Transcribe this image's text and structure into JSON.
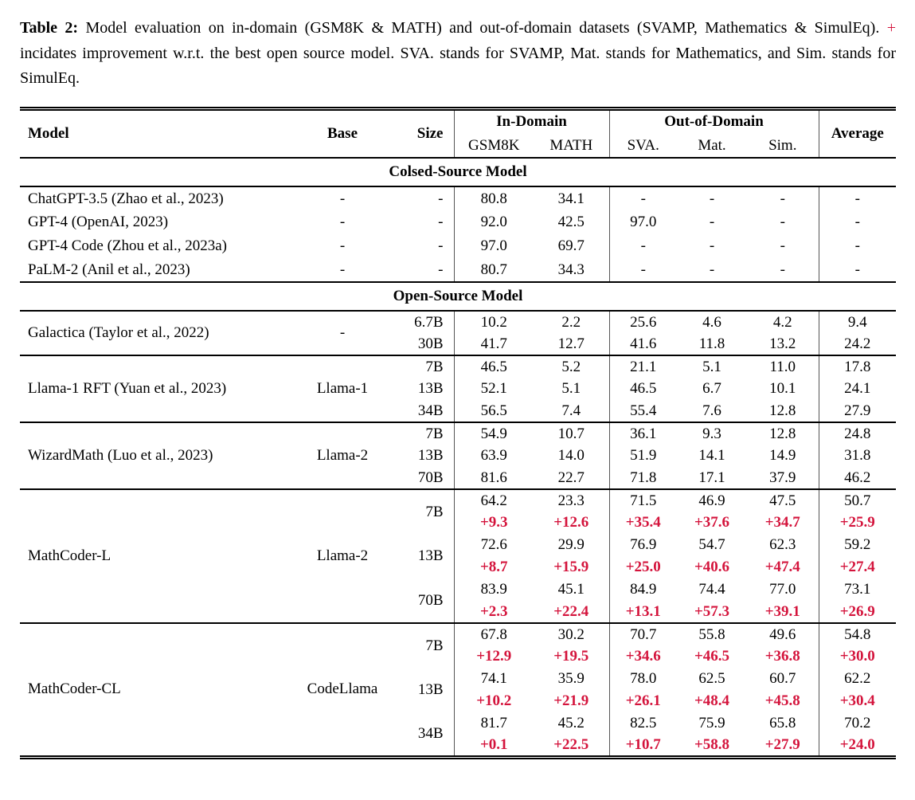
{
  "colors": {
    "accent_red": "#d4143c",
    "rule": "#000000",
    "vline": "#555555"
  },
  "caption": {
    "label": "Table 2:",
    "before_plus": "Model evaluation on in-domain (GSM8K & MATH) and out-of-domain datasets (SVAMP, Mathematics & SimulEq).",
    "plus": "+",
    "after_plus": "incidates improvement w.r.t. the best open source model. SVA. stands for SVAMP, Mat. stands for Mathematics, and Sim. stands for SimulEq."
  },
  "table": {
    "header": {
      "model": "Model",
      "base": "Base",
      "size": "Size",
      "in_domain": "In-Domain",
      "out_of_domain": "Out-of-Domain",
      "average": "Average",
      "sub_columns": [
        "GSM8K",
        "MATH",
        "SVA.",
        "Mat.",
        "Sim."
      ]
    },
    "sections": [
      {
        "title": "Colsed-Source Model",
        "group_dividers": false,
        "groups": [
          {
            "model": "ChatGPT-3.5 (Zhao et al., 2023)",
            "base": "-",
            "rows": [
              {
                "size": "-",
                "values": [
                  "80.8",
                  "34.1",
                  "-",
                  "-",
                  "-",
                  "-"
                ]
              }
            ]
          },
          {
            "model": "GPT-4 (OpenAI, 2023)",
            "base": "-",
            "rows": [
              {
                "size": "-",
                "values": [
                  "92.0",
                  "42.5",
                  "97.0",
                  "-",
                  "-",
                  "-"
                ]
              }
            ]
          },
          {
            "model": "GPT-4 Code (Zhou et al., 2023a)",
            "base": "-",
            "rows": [
              {
                "size": "-",
                "values": [
                  "97.0",
                  "69.7",
                  "-",
                  "-",
                  "-",
                  "-"
                ]
              }
            ]
          },
          {
            "model": "PaLM-2 (Anil et al., 2023)",
            "base": "-",
            "rows": [
              {
                "size": "-",
                "values": [
                  "80.7",
                  "34.3",
                  "-",
                  "-",
                  "-",
                  "-"
                ]
              }
            ]
          }
        ]
      },
      {
        "title": "Open-Source Model",
        "group_dividers": true,
        "groups": [
          {
            "model": "Galactica (Taylor et al., 2022)",
            "base": "-",
            "rows": [
              {
                "size": "6.7B",
                "values": [
                  "10.2",
                  "2.2",
                  "25.6",
                  "4.6",
                  "4.2",
                  "9.4"
                ]
              },
              {
                "size": "30B",
                "values": [
                  "41.7",
                  "12.7",
                  "41.6",
                  "11.8",
                  "13.2",
                  "24.2"
                ]
              }
            ]
          },
          {
            "model": "Llama-1 RFT (Yuan et al., 2023)",
            "base": "Llama-1",
            "rows": [
              {
                "size": "7B",
                "values": [
                  "46.5",
                  "5.2",
                  "21.1",
                  "5.1",
                  "11.0",
                  "17.8"
                ]
              },
              {
                "size": "13B",
                "values": [
                  "52.1",
                  "5.1",
                  "46.5",
                  "6.7",
                  "10.1",
                  "24.1"
                ]
              },
              {
                "size": "34B",
                "values": [
                  "56.5",
                  "7.4",
                  "55.4",
                  "7.6",
                  "12.8",
                  "27.9"
                ]
              }
            ]
          },
          {
            "model": "WizardMath (Luo et al., 2023)",
            "base": "Llama-2",
            "rows": [
              {
                "size": "7B",
                "values": [
                  "54.9",
                  "10.7",
                  "36.1",
                  "9.3",
                  "12.8",
                  "24.8"
                ]
              },
              {
                "size": "13B",
                "values": [
                  "63.9",
                  "14.0",
                  "51.9",
                  "14.1",
                  "14.9",
                  "31.8"
                ]
              },
              {
                "size": "70B",
                "values": [
                  "81.6",
                  "22.7",
                  "71.8",
                  "17.1",
                  "37.9",
                  "46.2"
                ]
              }
            ]
          },
          {
            "model": "MathCoder-L",
            "base": "Llama-2",
            "rows": [
              {
                "size": "7B",
                "values": [
                  "64.2",
                  "23.3",
                  "71.5",
                  "46.9",
                  "47.5",
                  "50.7"
                ],
                "gains": [
                  "+9.3",
                  "+12.6",
                  "+35.4",
                  "+37.6",
                  "+34.7",
                  "+25.9"
                ]
              },
              {
                "size": "13B",
                "values": [
                  "72.6",
                  "29.9",
                  "76.9",
                  "54.7",
                  "62.3",
                  "59.2"
                ],
                "gains": [
                  "+8.7",
                  "+15.9",
                  "+25.0",
                  "+40.6",
                  "+47.4",
                  "+27.4"
                ]
              },
              {
                "size": "70B",
                "values": [
                  "83.9",
                  "45.1",
                  "84.9",
                  "74.4",
                  "77.0",
                  "73.1"
                ],
                "gains": [
                  "+2.3",
                  "+22.4",
                  "+13.1",
                  "+57.3",
                  "+39.1",
                  "+26.9"
                ]
              }
            ]
          },
          {
            "model": "MathCoder-CL",
            "base": "CodeLlama",
            "rows": [
              {
                "size": "7B",
                "values": [
                  "67.8",
                  "30.2",
                  "70.7",
                  "55.8",
                  "49.6",
                  "54.8"
                ],
                "gains": [
                  "+12.9",
                  "+19.5",
                  "+34.6",
                  "+46.5",
                  "+36.8",
                  "+30.0"
                ]
              },
              {
                "size": "13B",
                "values": [
                  "74.1",
                  "35.9",
                  "78.0",
                  "62.5",
                  "60.7",
                  "62.2"
                ],
                "gains": [
                  "+10.2",
                  "+21.9",
                  "+26.1",
                  "+48.4",
                  "+45.8",
                  "+30.4"
                ]
              },
              {
                "size": "34B",
                "values": [
                  "81.7",
                  "45.2",
                  "82.5",
                  "75.9",
                  "65.8",
                  "70.2"
                ],
                "gains": [
                  "+0.1",
                  "+22.5",
                  "+10.7",
                  "+58.8",
                  "+27.9",
                  "+24.0"
                ]
              }
            ]
          }
        ]
      }
    ]
  }
}
